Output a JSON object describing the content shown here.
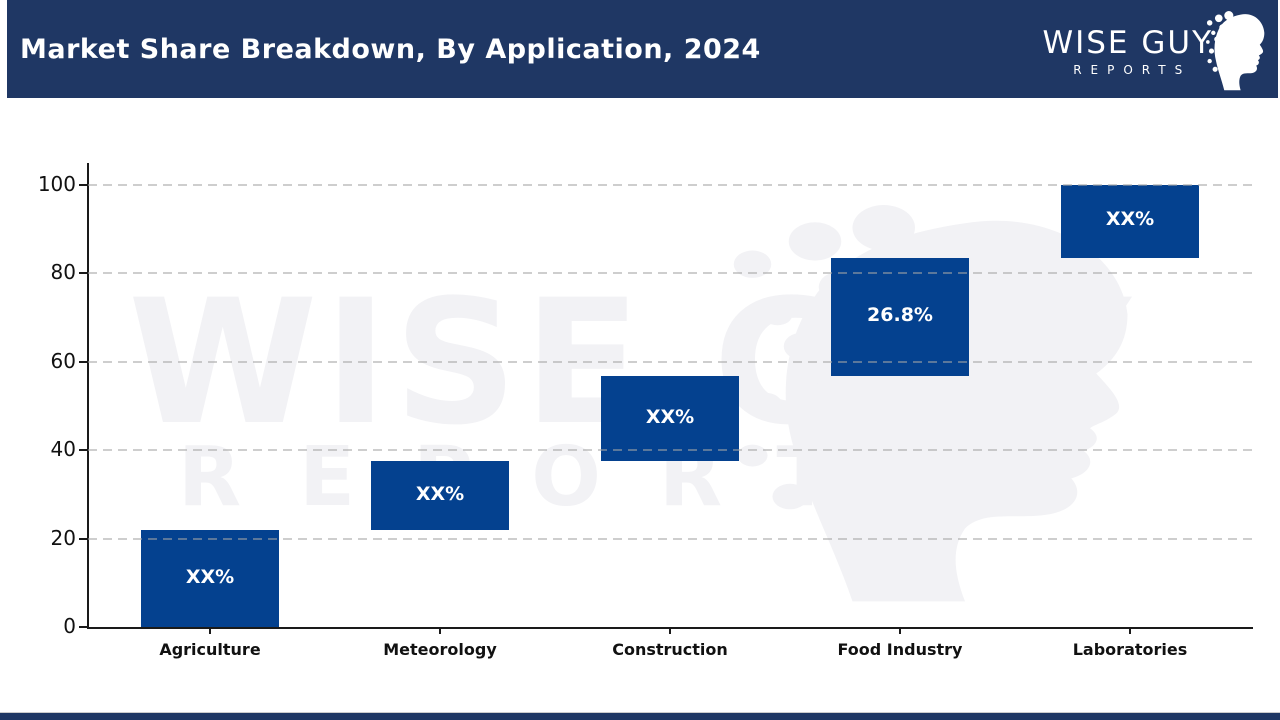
{
  "header": {
    "title": "Market Share Breakdown, By Application, 2024",
    "brand": {
      "line1": "WISE GUY",
      "line2": "REPORTS"
    }
  },
  "watermark": {
    "line1": "WISE GUY",
    "line2": "REPORTS"
  },
  "colors": {
    "header_bg": "#1f3764",
    "footer_bg": "#1f3764",
    "bar": "#04418f",
    "bar_label_text": "#ffffff",
    "axis": "#1a1a1a",
    "gridline": "#d9d9d9",
    "watermark": "#f2f2f5"
  },
  "chart_data": {
    "type": "bar",
    "subtype": "waterfall",
    "title": "Market Share Breakdown, By Application, 2024",
    "categories": [
      "Agriculture",
      "Meteorology",
      "Construction",
      "Food Industry",
      "Laboratories"
    ],
    "segments": [
      {
        "category": "Agriculture",
        "start": 0,
        "end": 21.9,
        "label": "XX%"
      },
      {
        "category": "Meteorology",
        "start": 21.9,
        "end": 37.5,
        "label": "XX%"
      },
      {
        "category": "Construction",
        "start": 37.5,
        "end": 56.7,
        "label": "XX%"
      },
      {
        "category": "Food Industry",
        "start": 56.7,
        "end": 83.5,
        "label": "26.8%"
      },
      {
        "category": "Laboratories",
        "start": 83.5,
        "end": 100,
        "label": "XX%"
      }
    ],
    "bar_labels": [
      "XX%",
      "XX%",
      "XX%",
      "26.8%",
      "XX%"
    ],
    "yticks": [
      0,
      20,
      40,
      60,
      80,
      100
    ],
    "ylim": [
      0,
      105
    ],
    "xlabel": "",
    "ylabel": "",
    "grid": "horizontal-dashed",
    "legend": "none"
  }
}
